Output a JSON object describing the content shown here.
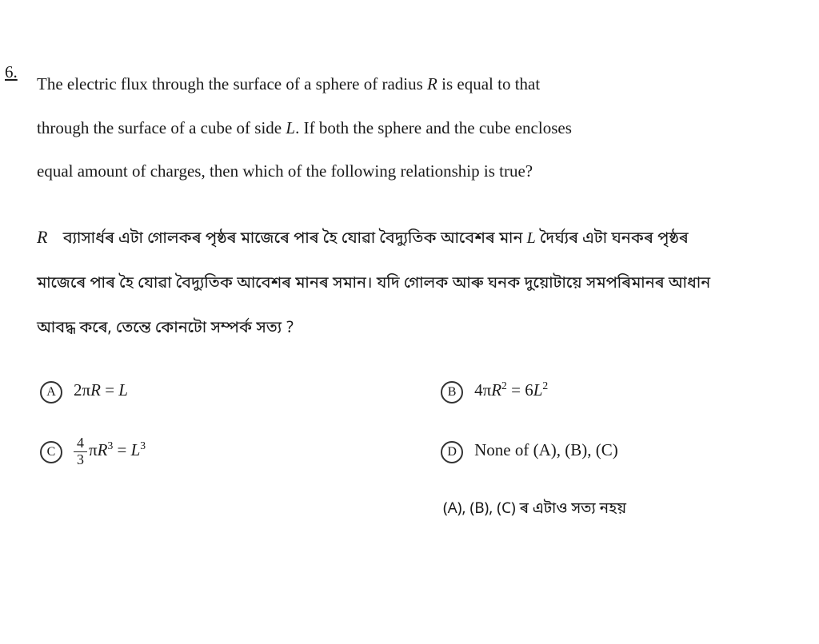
{
  "question": {
    "number": "6.",
    "stem_line1_a": "The electric flux through the surface of a sphere of radius ",
    "stem_var_R": "R",
    "stem_line1_b": " is equal to that",
    "stem_line2_a": "through the surface of a cube of side ",
    "stem_var_L": "L",
    "stem_line2_b": ". If both the sphere and the cube encloses",
    "stem_line3": "equal amount of charges, then which of the following relationship is true?"
  },
  "translation": {
    "lead_var": "R",
    "line1_a": "ব্যাসার্ধৰ এটা গোলকৰ পৃষ্ঠৰ মাজেৰে পাৰ হৈ যোৱা বৈদ্যুতিক আবেশৰ মান ",
    "inline_var": "L",
    "line1_b": " দৈৰ্ঘ্যৰ এটা ঘনকৰ পৃষ্ঠৰ",
    "line2": "মাজেৰে পাৰ হৈ যোৱা বৈদ্যুতিক আবেশৰ মানৰ সমান। যদি গোলক আৰু ঘনক দুয়োটায়ে সমপৰিমানৰ আধান",
    "line3": "আবদ্ধ কৰে, তেন্তে কোনটো সম্পৰ্ক সত্য ?"
  },
  "options": {
    "A": {
      "marker": "A",
      "text_prefix": "2π",
      "var1": "R",
      "text_mid": " = ",
      "var2": "L"
    },
    "B": {
      "marker": "B",
      "text_prefix": "4π",
      "var1": "R",
      "sup1": "2",
      "text_mid": " = 6",
      "var2": "L",
      "sup2": "2"
    },
    "C": {
      "marker": "C",
      "frac_num": "4",
      "frac_den": "3",
      "text_prefix": "π",
      "var1": "R",
      "sup1": "3",
      "text_mid": " = ",
      "var2": "L",
      "sup2": "3"
    },
    "D": {
      "marker": "D",
      "text": "None of (A), (B), (C)"
    }
  },
  "footer": {
    "note": "(A), (B), (C) ৰ এটাও সত্য নহয়"
  },
  "colors": {
    "background": "#ffffff",
    "text": "#1a1a1a",
    "border": "#333333"
  }
}
